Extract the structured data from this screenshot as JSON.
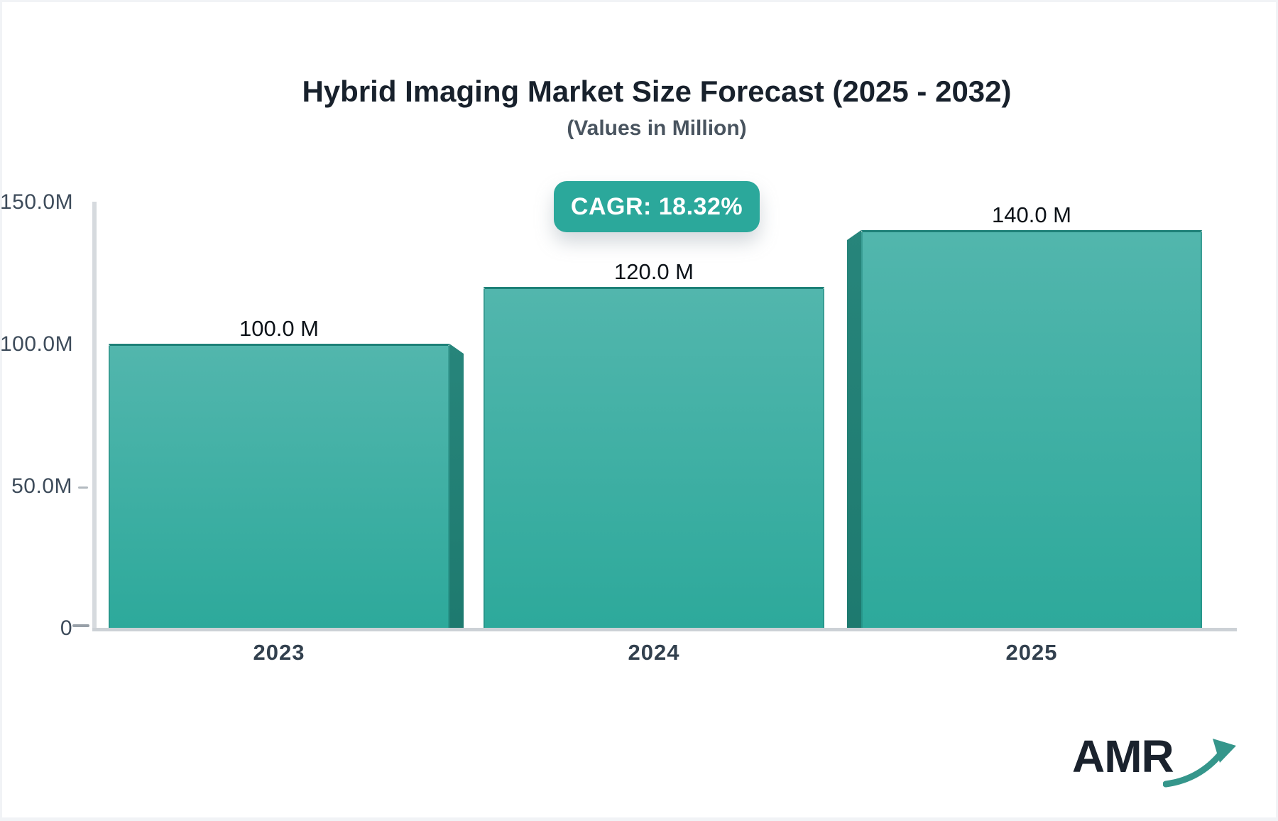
{
  "header": {
    "title": "Hybrid Imaging Market Size Forecast (2025 - 2032)",
    "subtitle": "(Values in Million)"
  },
  "badge": {
    "label": "CAGR: 18.32%"
  },
  "chart_data": {
    "type": "bar",
    "title": "Hybrid Imaging Market Size Forecast (2025 - 2032)",
    "subtitle": "(Values in Million)",
    "categories": [
      "2023",
      "2024",
      "2025"
    ],
    "values": [
      100.0,
      120.0,
      140.0
    ],
    "value_labels": [
      "100.0 M",
      "120.0 M",
      "140.0 M"
    ],
    "annotation": "CAGR: 18.32%",
    "ylim": [
      0,
      150
    ],
    "yticks": [
      0,
      50,
      100,
      150
    ],
    "ytick_labels": [
      "0",
      "50.0M",
      "100.0M",
      "150.0M"
    ],
    "xlabel": "",
    "ylabel": "",
    "grid": false,
    "legend": "none"
  },
  "logo": {
    "text": "AMR"
  },
  "colors": {
    "bar_gradient_top": "#52b6ad",
    "bar_gradient_bottom": "#2da99b",
    "bar_top_edge": "#1e8178",
    "bar_side_3d": "#1e7a6f",
    "badge_background": "#2ba89b",
    "badge_text": "#ffffff",
    "axis_line": "#d6dade",
    "baseline": "#ccd1d6",
    "title_text": "#18212c",
    "subtitle_text": "#49545f",
    "axis_label_text": "#3d4b5a",
    "category_label_text": "#32404e",
    "value_label_text": "#0c1218",
    "logo_text": "#1a222d",
    "logo_arrow": "#35968b"
  }
}
